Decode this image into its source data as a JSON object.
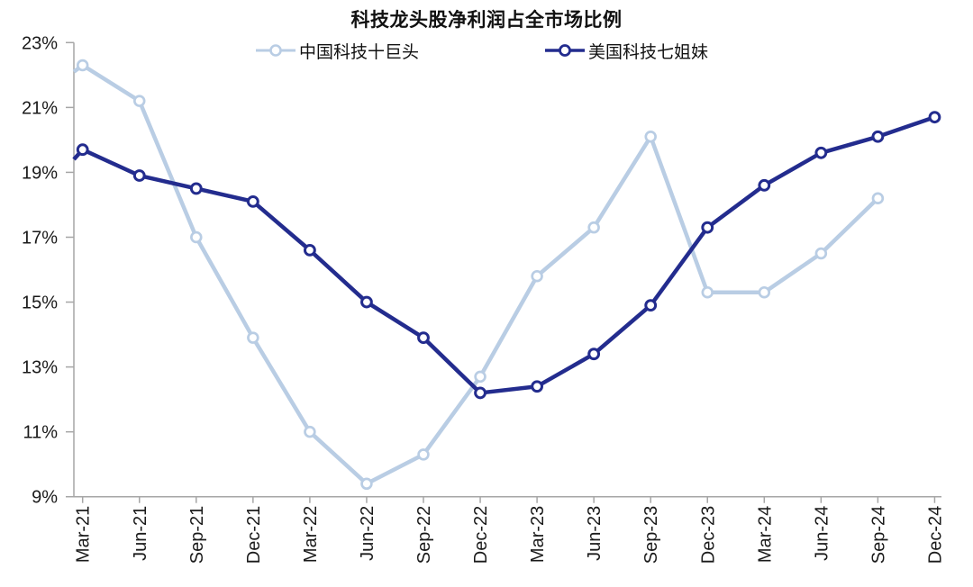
{
  "header": {
    "title": "科技龙头股净利润占全市场比例"
  },
  "chart_data": {
    "type": "line",
    "title": "科技龙头股净利润占全市场比例",
    "categories": [
      "Mar-21",
      "Jun-21",
      "Sep-21",
      "Dec-21",
      "Mar-22",
      "Jun-22",
      "Sep-22",
      "Dec-22",
      "Mar-23",
      "Jun-23",
      "Sep-23",
      "Dec-23",
      "Mar-24",
      "Jun-24",
      "Sep-24",
      "Dec-24"
    ],
    "series": [
      {
        "name": "中国科技十巨头",
        "color": "#b9cde4",
        "edge_value": 22.1,
        "values": [
          22.3,
          21.2,
          17.0,
          13.9,
          11.0,
          9.4,
          10.3,
          12.7,
          15.8,
          17.3,
          20.1,
          15.3,
          15.3,
          16.5,
          18.2,
          null
        ]
      },
      {
        "name": "美国科技七姐妹",
        "color": "#232c8e",
        "edge_value": 19.4,
        "values": [
          19.7,
          18.9,
          18.5,
          18.1,
          16.6,
          15.0,
          13.9,
          12.2,
          12.4,
          13.4,
          14.9,
          17.3,
          18.6,
          19.6,
          20.1,
          20.7
        ]
      }
    ],
    "ylim": [
      9,
      23
    ],
    "yticks": [
      23,
      21,
      19,
      17,
      15,
      13,
      11,
      9
    ],
    "ytick_labels": [
      "23%",
      "21%",
      "19%",
      "17%",
      "15%",
      "13%",
      "11%",
      "9%"
    ],
    "grid": false,
    "legend_position": "top-center",
    "axis_color": "#a6a6a6",
    "label_color": "#1a1a1a",
    "marker": "open-circle"
  }
}
